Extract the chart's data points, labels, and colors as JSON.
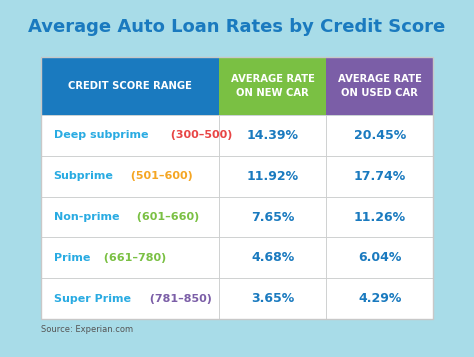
{
  "title": "Average Auto Loan Rates by Credit Score",
  "source": "Source: Experian.com",
  "bg_color": "#a8dce8",
  "header_col1_color": "#1a7abf",
  "header_col2_color": "#7ac043",
  "header_col3_color": "#7b5ea7",
  "header_text_color": "#ffffff",
  "col1_label": "CREDIT SCORE RANGE",
  "col2_label": "AVERAGE RATE\nON NEW CAR",
  "col3_label": "AVERAGE RATE\nON USED CAR",
  "rows": [
    {
      "label_text": "Deep subprime",
      "range_text": "(300–500)",
      "label_color": "#29abe2",
      "range_color": "#e84545",
      "new_rate": "14.39%",
      "used_rate": "20.45%"
    },
    {
      "label_text": "Subprime",
      "range_text": "(501–600)",
      "label_color": "#29abe2",
      "range_color": "#f5a623",
      "new_rate": "11.92%",
      "used_rate": "17.74%"
    },
    {
      "label_text": "Non-prime",
      "range_text": "(601–660)",
      "label_color": "#29abe2",
      "range_color": "#7ac043",
      "new_rate": "7.65%",
      "used_rate": "11.26%"
    },
    {
      "label_text": "Prime",
      "range_text": "(661–780)",
      "label_color": "#29abe2",
      "range_color": "#7ac043",
      "new_rate": "4.68%",
      "used_rate": "6.04%"
    },
    {
      "label_text": "Super Prime",
      "range_text": "(781–850)",
      "label_color": "#29abe2",
      "range_color": "#7b5ea7",
      "new_rate": "3.65%",
      "used_rate": "4.29%"
    }
  ],
  "rate_color": "#1a7abf",
  "title_color": "#1a7abf",
  "table_border_color": "#c8c8c8",
  "title_fontsize": 13,
  "header_fontsize": 7.2,
  "row_fontsize": 8.0,
  "rate_fontsize": 9.0
}
